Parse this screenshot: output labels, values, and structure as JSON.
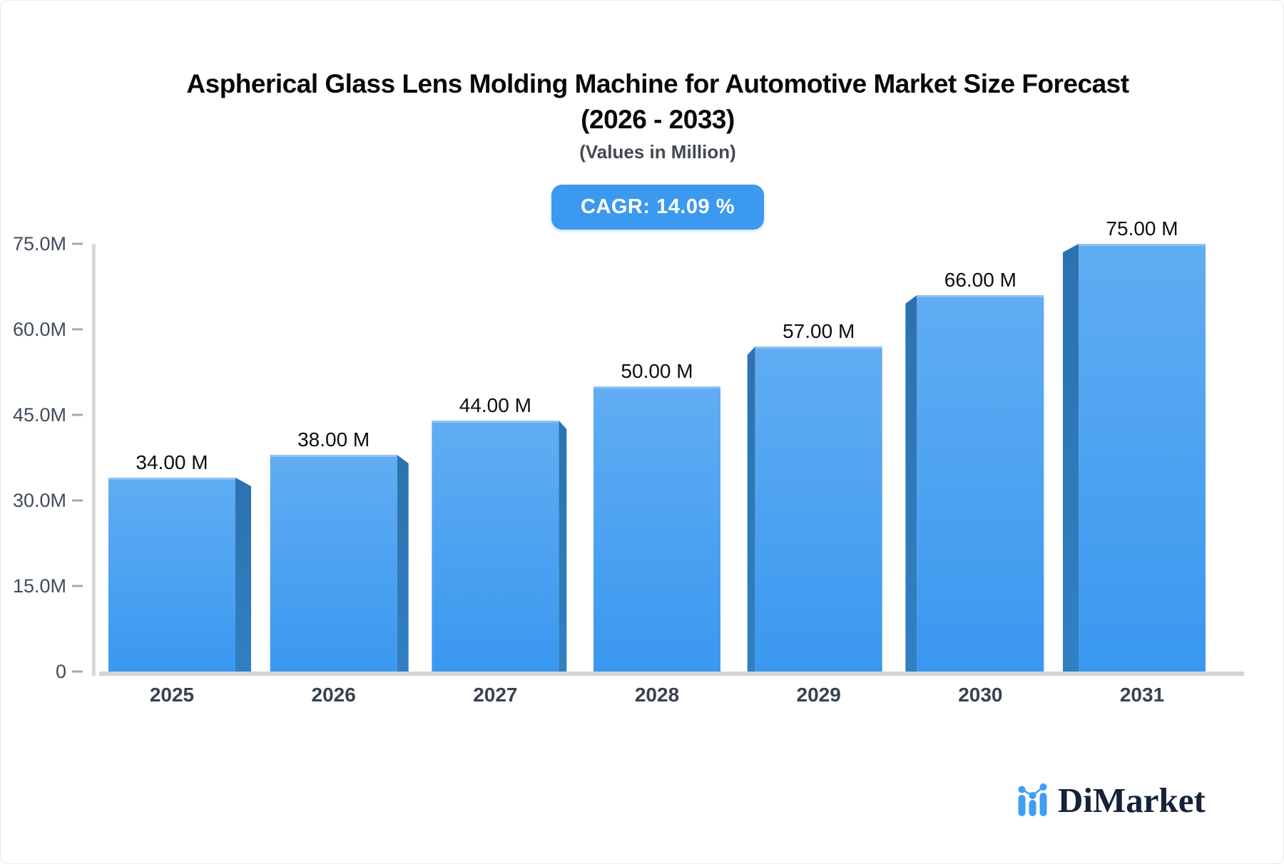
{
  "header": {
    "title_line1": "Aspherical Glass Lens Molding Machine for Automotive Market Size Forecast",
    "title_line2": "(2026 - 2033)",
    "subtitle": "(Values in Million)",
    "badge_label": "CAGR: 14.09 %"
  },
  "chart_data": {
    "type": "bar",
    "title": "Aspherical Glass Lens Molding Machine for Automotive Market Size Forecast (2026 - 2033)",
    "subtitle": "(Values in Million)",
    "cagr_percent": 14.09,
    "categories": [
      "2025",
      "2026",
      "2027",
      "2028",
      "2029",
      "2030",
      "2031"
    ],
    "values": [
      34,
      38,
      44,
      50,
      57,
      66,
      75
    ],
    "value_labels": [
      "34.00 M",
      "38.00 M",
      "44.00 M",
      "50.00 M",
      "57.00 M",
      "66.00 M",
      "75.00 M"
    ],
    "unit": "Million",
    "ylim": [
      0,
      75
    ],
    "ytick_labels": [
      "0",
      "15.0M",
      "30.0M",
      "45.0M",
      "60.0M",
      "75.0M"
    ],
    "ytick_values": [
      0,
      15,
      30,
      45,
      60,
      75
    ],
    "xlabel": "",
    "ylabel": "",
    "grid": "off",
    "legend": "none",
    "colors": {
      "bar_face_top": "#60adf2",
      "bar_face_bottom": "#3a98f0",
      "bar_side": "#2d76b5",
      "bar_top_edge": "#8ec4f3",
      "axis_line": "#d6d8dc",
      "tick_dash": "#a4aab0",
      "ytick_text": "#414c59",
      "category_text": "#39434f",
      "value_text": "#0c0d0e",
      "badge_bg": "#3b99ef"
    }
  },
  "logo": {
    "name": "DiMarket"
  }
}
